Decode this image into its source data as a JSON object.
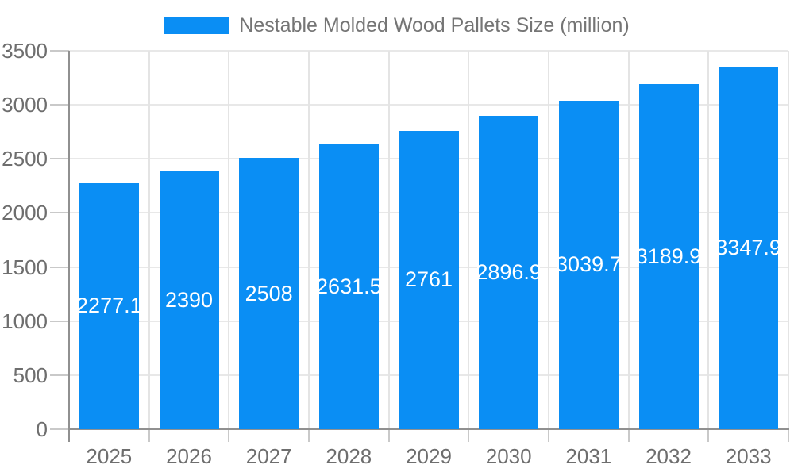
{
  "chart_data": {
    "type": "bar",
    "title": "Nestable Molded Wood Pallets Size (million)",
    "categories": [
      "2025",
      "2026",
      "2027",
      "2028",
      "2029",
      "2030",
      "2031",
      "2032",
      "2033"
    ],
    "values": [
      2277.1,
      2390,
      2508,
      2631.5,
      2761,
      2896.9,
      3039.7,
      3189.9,
      3347.9
    ],
    "xlabel": "",
    "ylabel": "",
    "ylim": [
      0,
      3500
    ],
    "yticks": [
      0,
      500,
      1000,
      1500,
      2000,
      2500,
      3000,
      3500
    ],
    "grid": true,
    "legend_position": "top",
    "data_labels": "inside-center"
  },
  "colors": {
    "bar": "#0a8ef4",
    "bar_label": "#ffffff",
    "axis": "#909090",
    "grid": "#e8e8e8",
    "tick": "#c9c9c9",
    "axis_label_text": "#6e6e6e",
    "legend_text": "#757575",
    "background": "#ffffff"
  }
}
